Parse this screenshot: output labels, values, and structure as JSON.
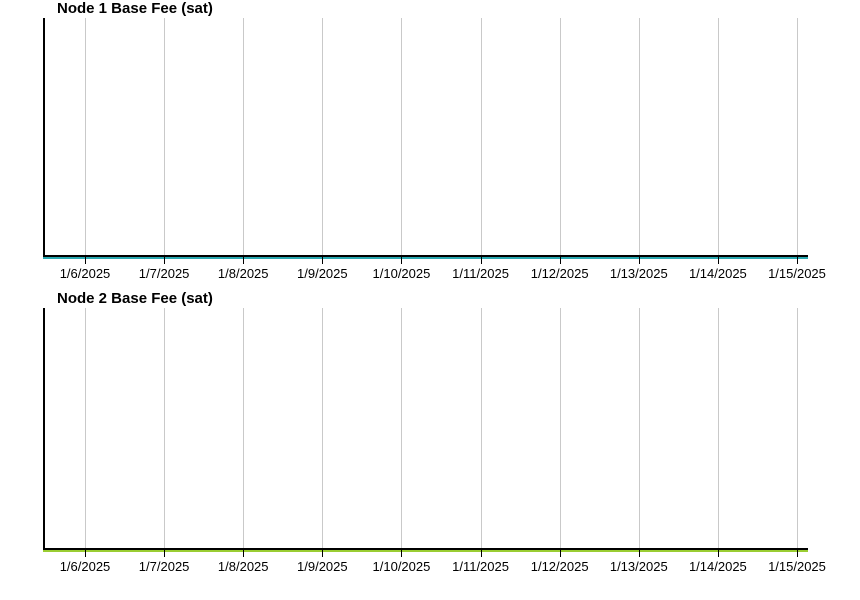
{
  "colors": {
    "background": "#ffffff",
    "axis": "#000000",
    "gridline": "#c9c9c9",
    "title_text": "#000000",
    "label_text": "#000000",
    "node1_line": "#2aa8b0",
    "node2_line": "#9acd32"
  },
  "chart_data": [
    {
      "type": "line",
      "title": "Node 1 Base Fee (sat)",
      "x": [
        "1/6/2025",
        "1/7/2025",
        "1/8/2025",
        "1/9/2025",
        "1/10/2025",
        "1/11/2025",
        "1/12/2025",
        "1/13/2025",
        "1/14/2025",
        "1/15/2025"
      ],
      "series": [
        {
          "name": "Node 1 Base Fee",
          "values": [
            0,
            0,
            0,
            0,
            0,
            0,
            0,
            0,
            0,
            0
          ]
        }
      ],
      "xlabel": "",
      "ylabel": "",
      "y_axis_labels": [],
      "grid": true,
      "legend": "none",
      "line_color": "#2aa8b0"
    },
    {
      "type": "line",
      "title": "Node 2 Base Fee (sat)",
      "x": [
        "1/6/2025",
        "1/7/2025",
        "1/8/2025",
        "1/9/2025",
        "1/10/2025",
        "1/11/2025",
        "1/12/2025",
        "1/13/2025",
        "1/14/2025",
        "1/15/2025"
      ],
      "series": [
        {
          "name": "Node 2 Base Fee",
          "values": [
            0,
            0,
            0,
            0,
            0,
            0,
            0,
            0,
            0,
            0
          ]
        }
      ],
      "xlabel": "",
      "ylabel": "",
      "y_axis_labels": [],
      "grid": true,
      "legend": "none",
      "line_color": "#9acd32"
    }
  ]
}
